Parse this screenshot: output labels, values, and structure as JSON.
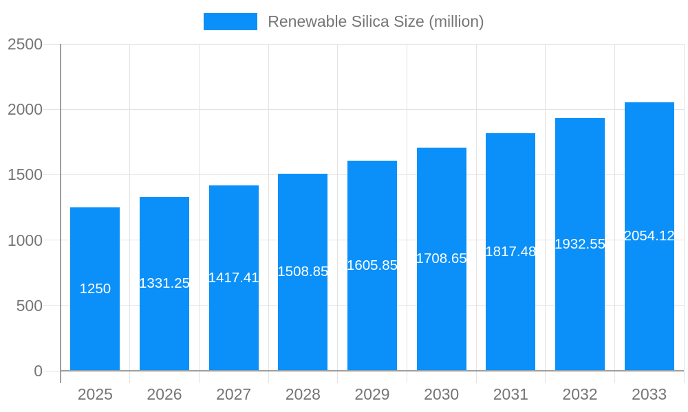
{
  "legend": {
    "label": "Renewable Silica Size (million)",
    "swatch_color": "#0a90f8"
  },
  "chart_data": {
    "type": "bar",
    "title": "",
    "xlabel": "",
    "ylabel": "",
    "categories": [
      "2025",
      "2026",
      "2027",
      "2028",
      "2029",
      "2030",
      "2031",
      "2032",
      "2033"
    ],
    "series": [
      {
        "name": "Renewable Silica Size (million)",
        "color": "#0a90f8",
        "values": [
          1250,
          1331.25,
          1417.41,
          1508.85,
          1605.85,
          1708.65,
          1817.48,
          1932.55,
          2054.12
        ]
      }
    ],
    "value_labels": [
      "1250",
      "1331.25",
      "1417.41",
      "1508.85",
      "1605.85",
      "1708.65",
      "1817.48",
      "1932.55",
      "2054.12"
    ],
    "value_label_color": "#ffffff",
    "ylim": [
      0,
      2500
    ],
    "yticks": [
      "0",
      "500",
      "1000",
      "1500",
      "2000",
      "2500"
    ],
    "grid": true,
    "legend_position": "top"
  },
  "colors": {
    "bar": "#0a90f8",
    "grid_line": "#e3e3e3",
    "axis_line": "#9e9e9e",
    "tick_text": "#757575",
    "background": "#ffffff"
  }
}
